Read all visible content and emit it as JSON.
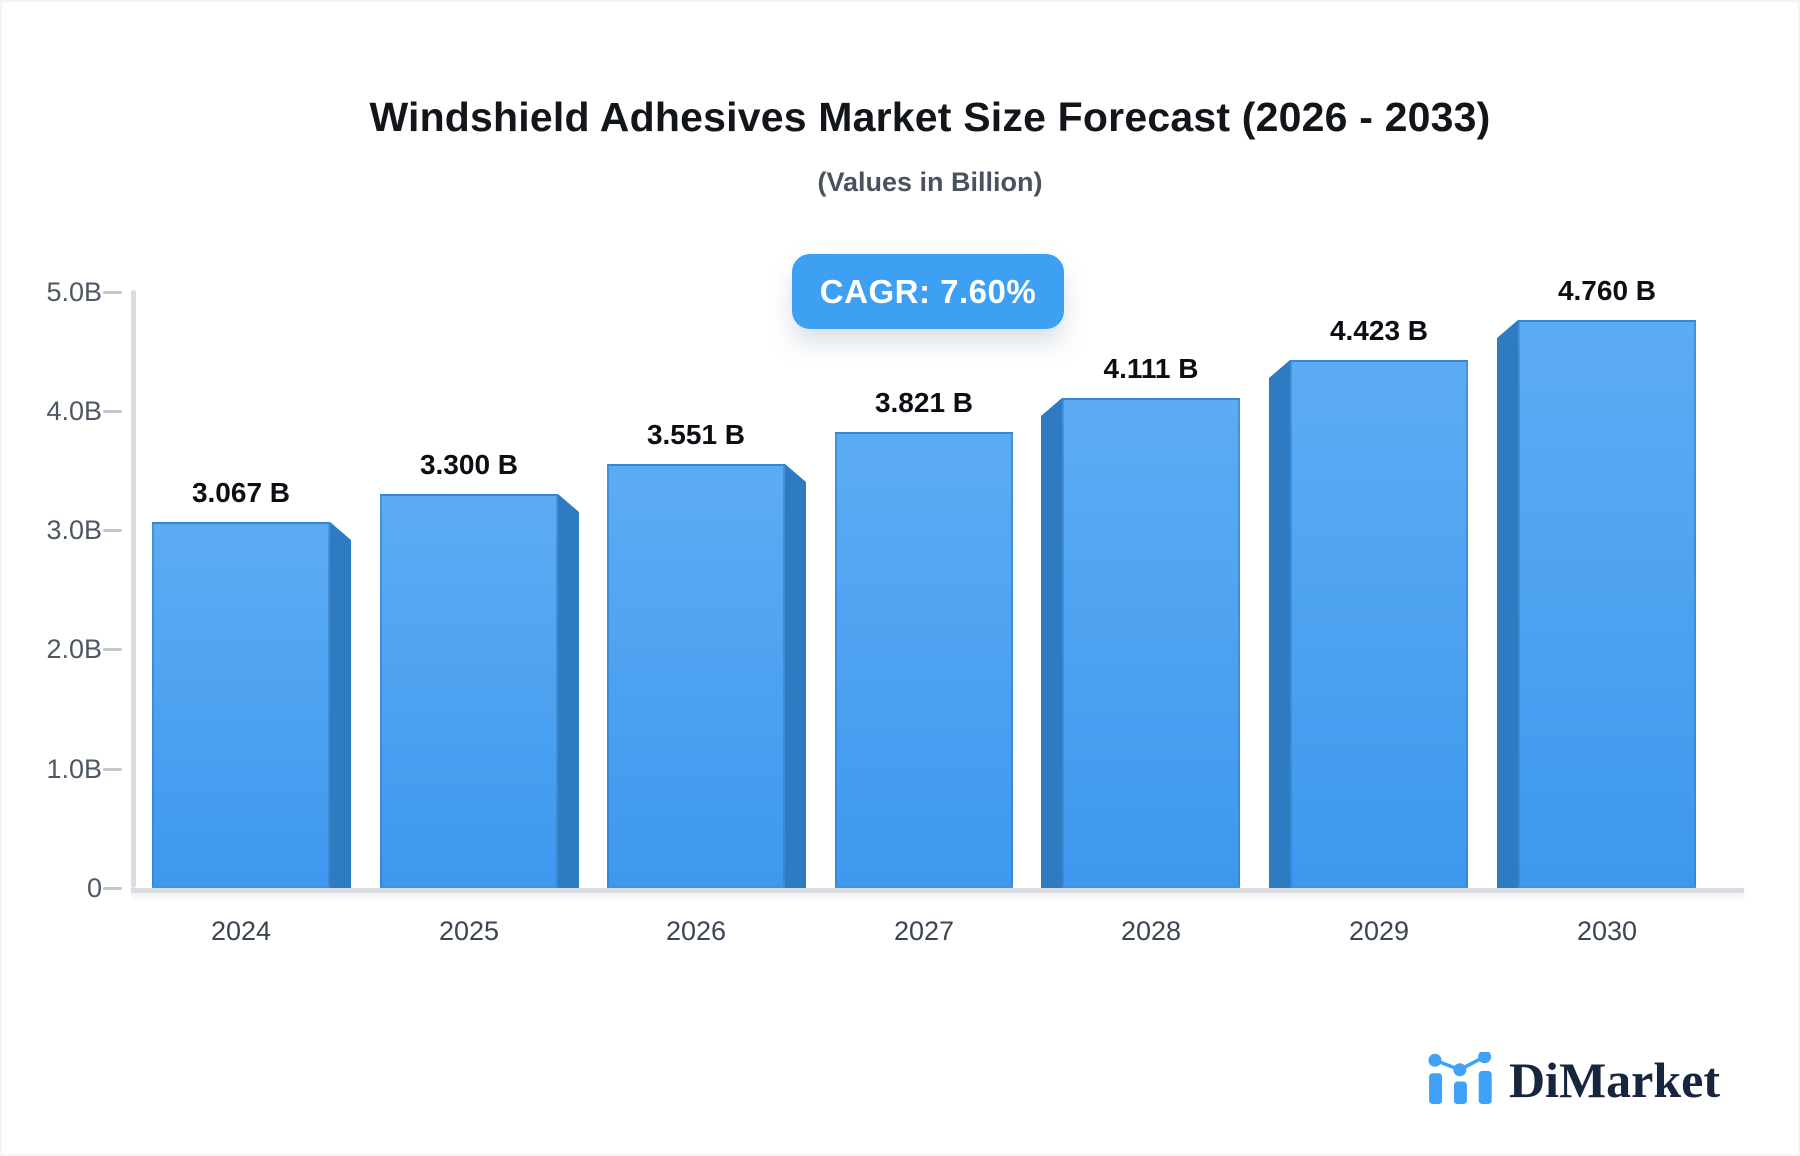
{
  "header": {
    "title": "Windshield Adhesives Market Size Forecast (2026 - 2033)",
    "subtitle": "(Values in Billion)",
    "cagr_label": "CAGR: 7.60%"
  },
  "chart_data": {
    "type": "bar",
    "title": "Windshield Adhesives Market Size Forecast (2026 - 2033)",
    "subtitle": "(Values in Billion)",
    "unit": "Billion",
    "cagr_percent": 7.6,
    "categories": [
      "2024",
      "2025",
      "2026",
      "2027",
      "2028",
      "2029",
      "2030"
    ],
    "values": [
      3.067,
      3.3,
      3.551,
      3.821,
      4.111,
      4.423,
      4.76
    ],
    "value_labels": [
      "3.067 B",
      "3.300 B",
      "3.551 B",
      "3.821 B",
      "4.111 B",
      "4.423 B",
      "4.760 B"
    ],
    "y_ticks": [
      {
        "label": "5.0B",
        "value": 5
      },
      {
        "label": "4.0B",
        "value": 4
      },
      {
        "label": "3.0B",
        "value": 3
      },
      {
        "label": "2.0B",
        "value": 2
      },
      {
        "label": "1.0B",
        "value": 1
      },
      {
        "label": "0",
        "value": 0
      }
    ],
    "ylim": [
      0,
      5
    ],
    "xlabel": "",
    "ylabel": "",
    "grid": "off",
    "legend": "none",
    "bar_style": "3d-bevel, side face toward chart center",
    "colors": {
      "bar_face_top": "#5cacf3",
      "bar_face_bottom": "#3e98ee",
      "bar_side": "#2e7bc2",
      "bar_face_border": "rgba(44,124,198,0.55)",
      "badge_bg": "#3da0f2",
      "badge_text": "#ffffff",
      "axis_line": "#d9dce1",
      "tick_mark": "#c3c8cd",
      "y_label": "#4d5765",
      "x_label": "#3c4553",
      "value_label": "#0b0e14",
      "title": "#12151a",
      "subtitle": "#4a5260",
      "logo_blue": "#3fa2f7",
      "logo_text": "#18253e"
    }
  },
  "footer": {
    "logo_text": "DiMarket"
  }
}
